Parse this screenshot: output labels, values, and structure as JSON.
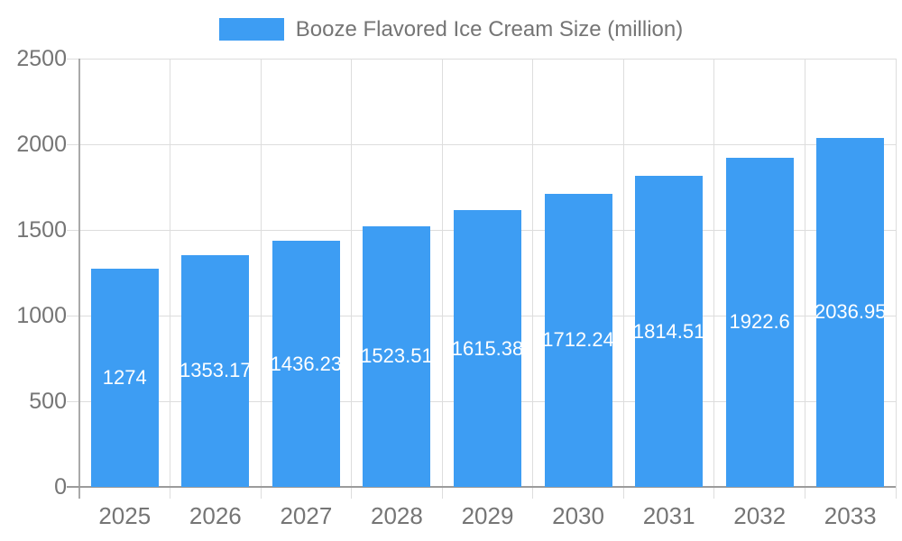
{
  "legend": {
    "items": [
      {
        "label": "Booze Flavored Ice Cream Size (million)",
        "color": "#3D9DF3"
      }
    ]
  },
  "chart_data": {
    "type": "bar",
    "title": "Booze Flavored Ice Cream Size (million)",
    "categories": [
      "2025",
      "2026",
      "2027",
      "2028",
      "2029",
      "2030",
      "2031",
      "2032",
      "2033"
    ],
    "values": [
      1274,
      1353.17,
      1436.23,
      1523.51,
      1615.38,
      1712.24,
      1814.51,
      1922.6,
      2036.95
    ],
    "value_labels": [
      "1274",
      "1353.17",
      "1436.23",
      "1523.51",
      "1615.38",
      "1712.24",
      "1814.51",
      "1922.6",
      "2036.95"
    ],
    "xlabel": "",
    "ylabel": "",
    "ylim": [
      0,
      2500
    ],
    "yticks": [
      0,
      500,
      1000,
      1500,
      2000,
      2500
    ],
    "grid": "both",
    "legend_position": "top-center",
    "colors": {
      "bar": "#3D9DF3",
      "value_label": "#FFFFFF",
      "axis_text": "#757575",
      "gridline": "#DDDDDD",
      "axis_line": "#A0A0A0"
    }
  }
}
